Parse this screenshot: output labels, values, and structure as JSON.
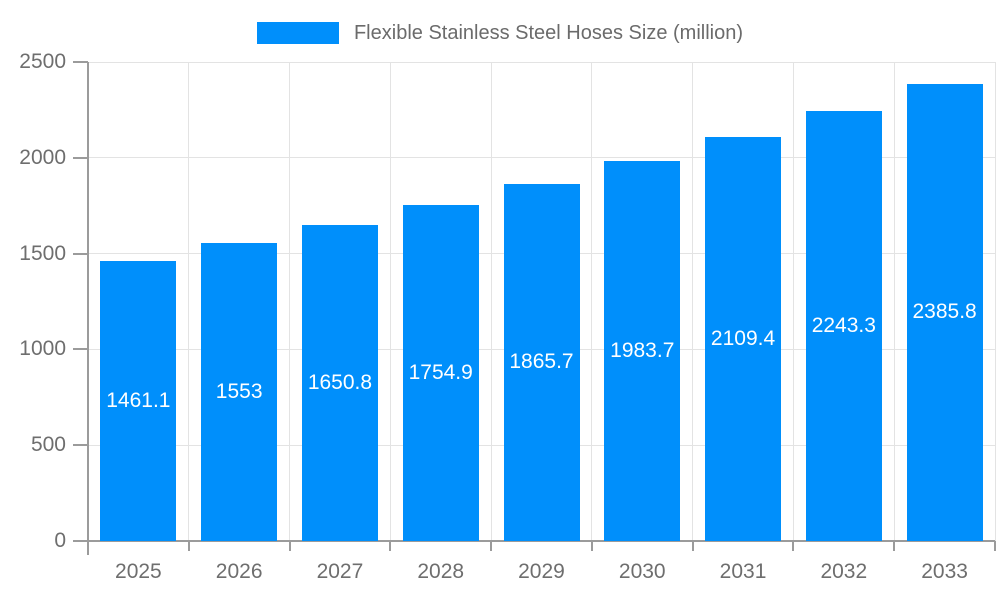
{
  "legend": {
    "label": "Flexible Stainless Steel Hoses Size (million)",
    "swatch_color": "#008FFB"
  },
  "chart_data": {
    "type": "bar",
    "title": "Flexible Stainless Steel Hoses Size (million)",
    "categories": [
      "2025",
      "2026",
      "2027",
      "2028",
      "2029",
      "2030",
      "2031",
      "2032",
      "2033"
    ],
    "values": [
      1461.1,
      1553,
      1650.8,
      1754.9,
      1865.7,
      1983.7,
      2109.4,
      2243.3,
      2385.8
    ],
    "value_labels": [
      "1461.1",
      "1553",
      "1650.8",
      "1754.9",
      "1865.7",
      "1983.7",
      "2109.4",
      "2243.3",
      "2385.8"
    ],
    "xlabel": "",
    "ylabel": "",
    "ylim": [
      0,
      2500
    ],
    "yticks": [
      0,
      500,
      1000,
      1500,
      2000,
      2500
    ],
    "ytick_labels": [
      "0",
      "500",
      "1000",
      "1500",
      "2000",
      "2500"
    ],
    "grid": true,
    "legend_position": "top",
    "bar_color": "#008FFB"
  },
  "colors": {
    "bar": "#008FFB",
    "grid": "#e3e3e3",
    "axis": "#9b9b9b",
    "tick_label": "#6e6e6e",
    "legend_label": "#6b6b6b",
    "value_label": "#ffffff",
    "background": "#ffffff"
  }
}
